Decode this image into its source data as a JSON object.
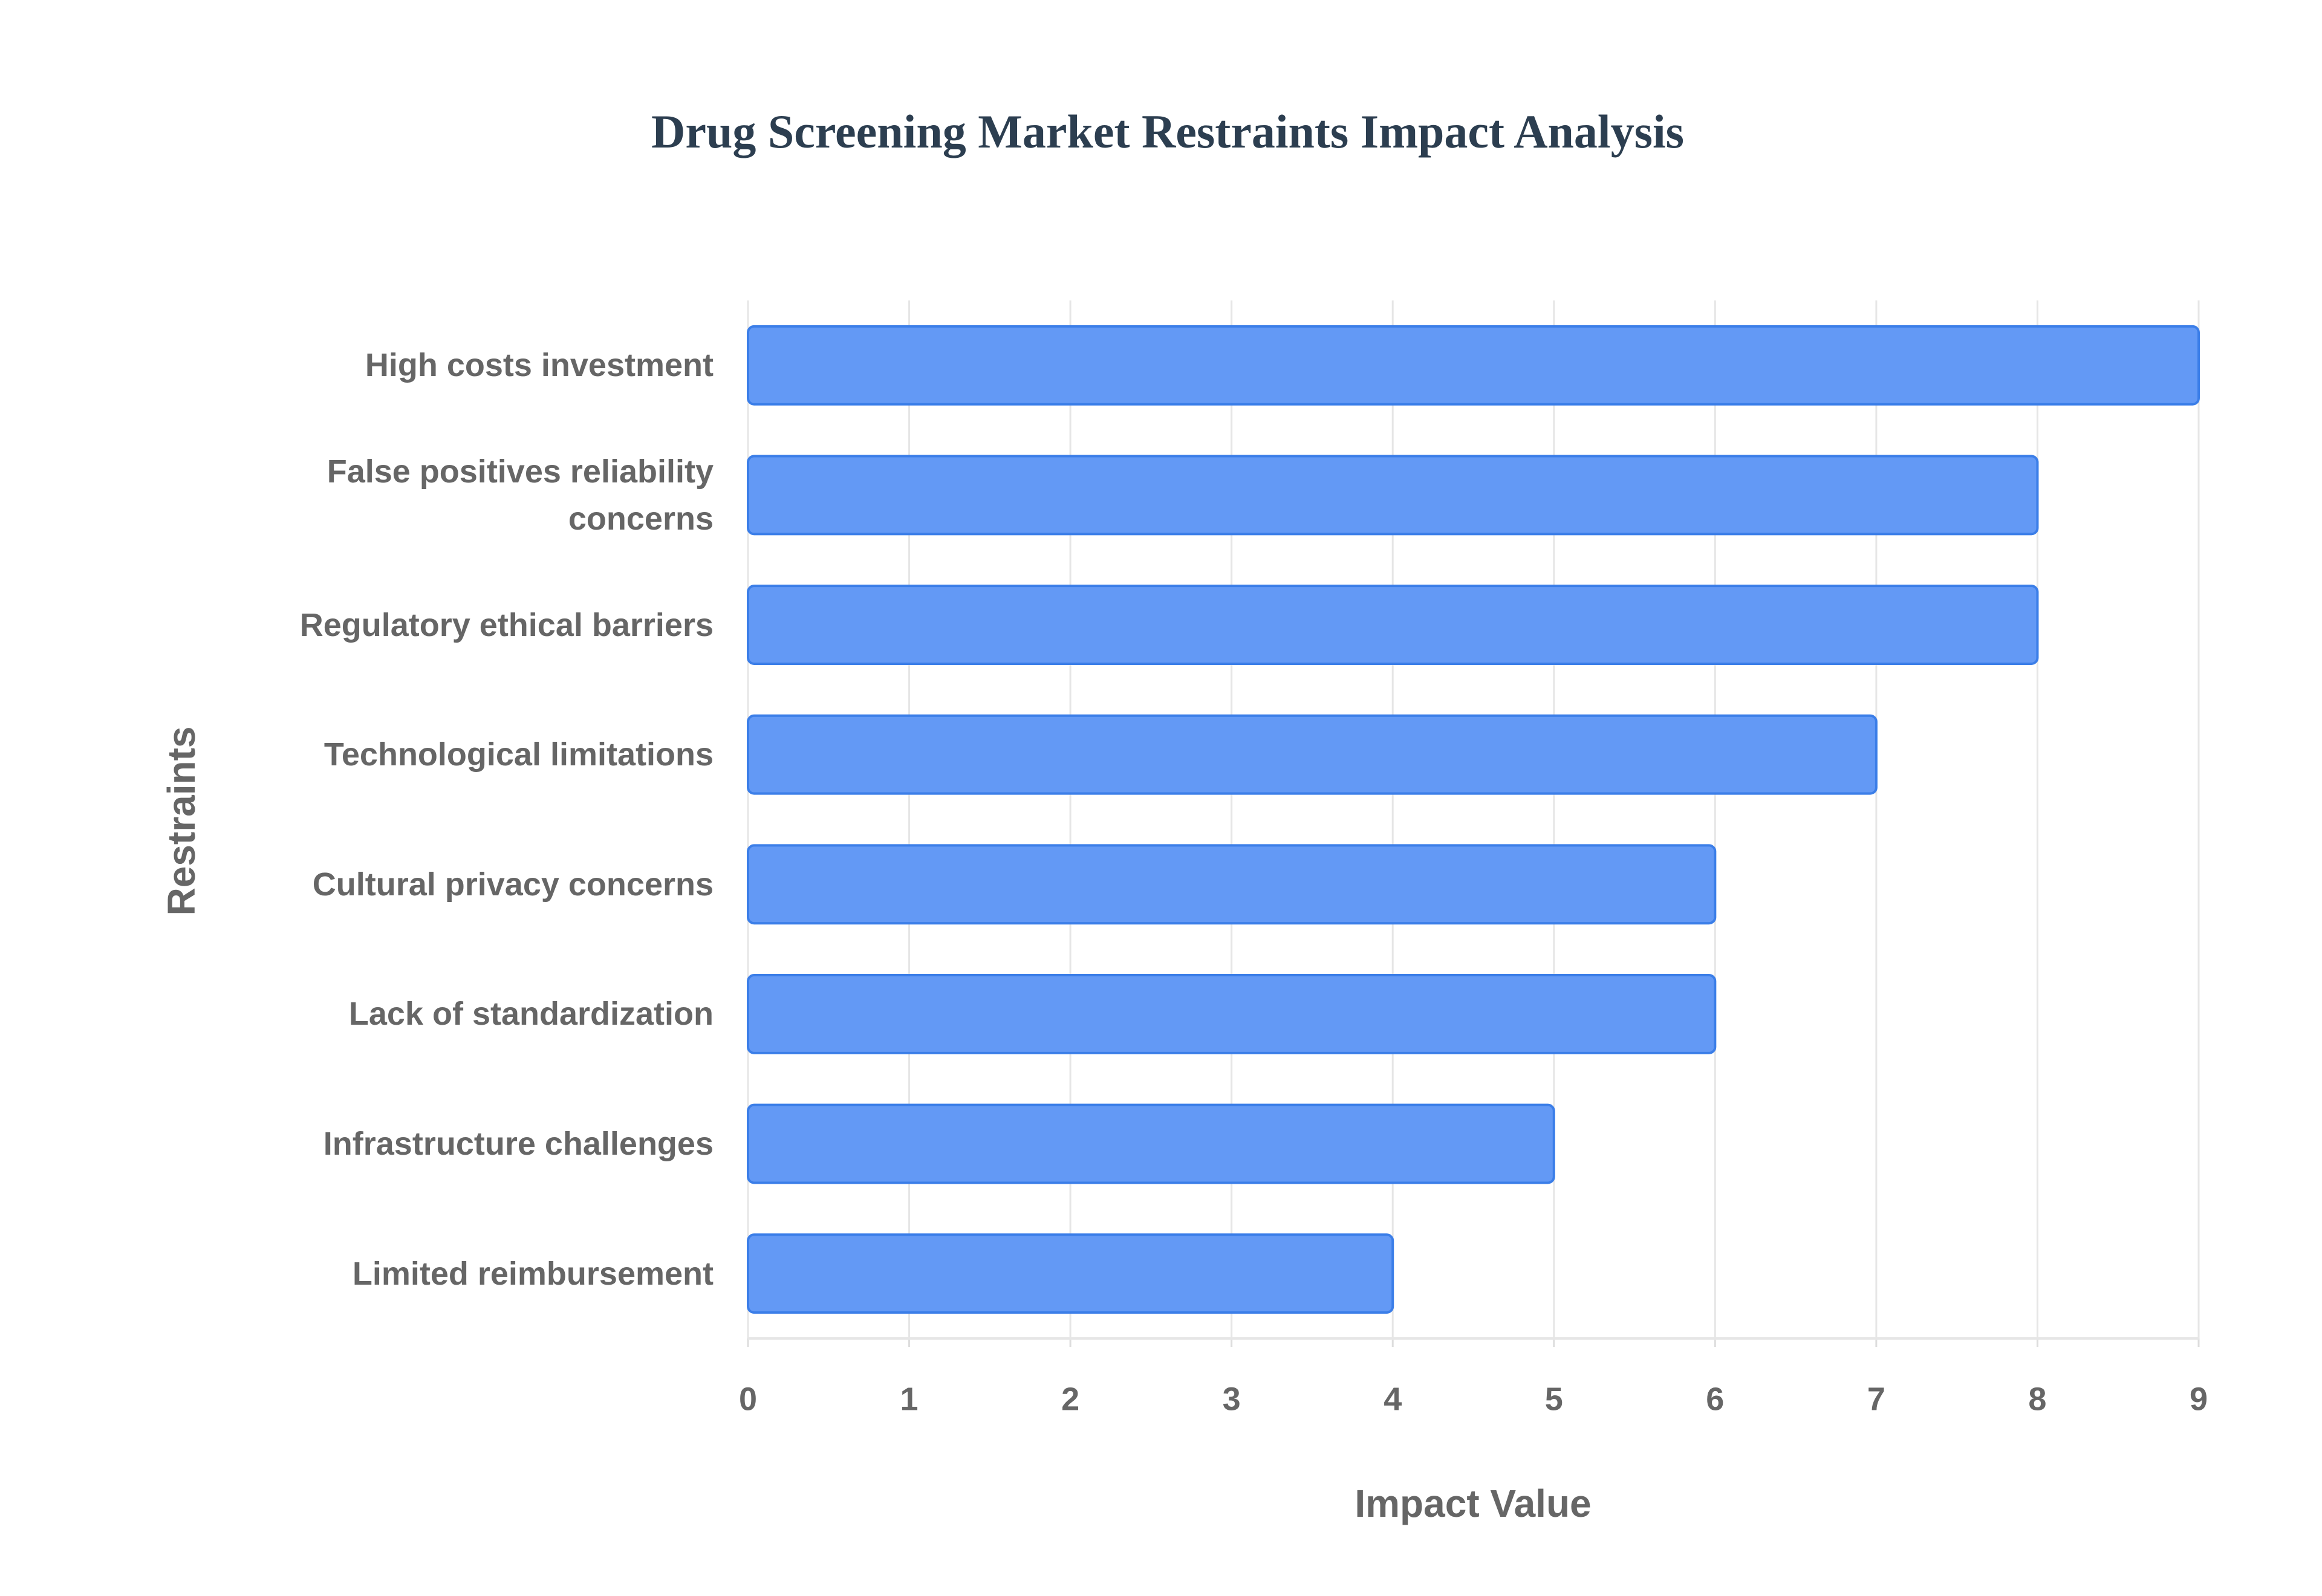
{
  "chart_data": {
    "type": "bar",
    "title": "Drug Screening Market Restraints Impact Analysis",
    "categories": [
      "High costs investment",
      "False positives reliability concerns",
      "Regulatory ethical barriers",
      "Technological limitations",
      "Cultural privacy concerns",
      "Lack of standardization",
      "Infrastructure challenges",
      "Limited reimbursement"
    ],
    "values": [
      9,
      8,
      8,
      7,
      6,
      6,
      5,
      4
    ],
    "color": "#6399f5",
    "edge_color": "#3b7ee8",
    "xlim": [
      0,
      9
    ],
    "xticks": [
      0,
      1,
      2,
      3,
      4,
      5,
      6,
      7,
      8,
      9
    ],
    "grid": true,
    "xlabel": "Impact Value",
    "ylabel": "Restraints"
  }
}
